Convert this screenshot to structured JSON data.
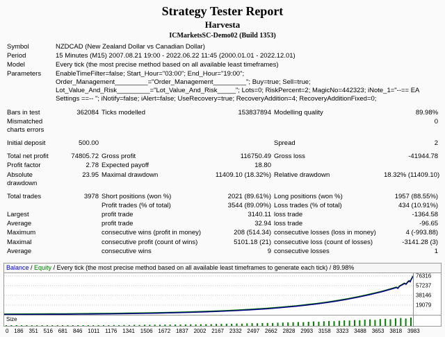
{
  "header": {
    "title": "Strategy Tester Report",
    "ea_name": "Harvesta",
    "server": "ICMarketsSC-Demo02 (Build 1353)"
  },
  "table": {
    "rows": [
      {
        "name": "row-symbol",
        "cells": [
          {
            "t": "Symbol"
          },
          {
            "t": "NZDCAD (New Zealand Dollar vs Canadian Dollar)",
            "span": 5
          }
        ]
      },
      {
        "name": "row-period",
        "cells": [
          {
            "t": "Period"
          },
          {
            "t": "15 Minutes (M15) 2007.08.21 19:00 - 2022.06.22 11:45 (2000.01.01 - 2022.12.01)",
            "span": 5
          }
        ]
      },
      {
        "name": "row-model",
        "cells": [
          {
            "t": "Model"
          },
          {
            "t": "Every tick (the most precise method based on all available least timeframes)",
            "span": 5
          }
        ]
      },
      {
        "name": "row-parameters",
        "cells": [
          {
            "t": "Parameters"
          },
          {
            "t": "EnableTimeFilter=false; Start_Hour=\"03:00\"; End_Hour=\"19:00\"; Order_Management_________=\"Order_Management_________\"; Buy=true; Sell=true; Lot_Value_And_Risk_________=\"Lot_Value_And_Risk_____\"; Lots=0; RiskPercent=2; MagicNo=442323; iNote_1=\"--== EA Settings ==-- \"; iNotify=false; iAlert=false; UseRecovery=true; RecoveryAddition=4; RecoveryAdditionFixed=0;",
            "span": 5
          }
        ]
      },
      {
        "spacer": true
      },
      {
        "name": "row-bars-in-test",
        "cells": [
          {
            "t": "Bars in test"
          },
          {
            "t": "362084",
            "al": "r"
          },
          {
            "t": "Ticks modelled"
          },
          {
            "t": "153837894",
            "al": "r"
          },
          {
            "t": "Modelling quality"
          },
          {
            "t": "89.98%",
            "al": "r"
          }
        ]
      },
      {
        "name": "row-mismatched-charts-errors",
        "cells": [
          {
            "t": "Mismatched charts errors"
          },
          {
            "t": "",
            "span": 4
          },
          {
            "t": "0",
            "al": "r"
          }
        ]
      },
      {
        "spacer": true
      },
      {
        "name": "row-initial-deposit",
        "cells": [
          {
            "t": "Initial deposit"
          },
          {
            "t": "500.00",
            "al": "r"
          },
          {
            "t": ""
          },
          {
            "t": "",
            "al": "r"
          },
          {
            "t": "Spread"
          },
          {
            "t": "2",
            "al": "r"
          }
        ]
      },
      {
        "spacer": true
      },
      {
        "name": "row-total-net-profit",
        "cells": [
          {
            "t": "Total net profit"
          },
          {
            "t": "74805.72",
            "al": "r"
          },
          {
            "t": "Gross profit"
          },
          {
            "t": "116750.49",
            "al": "r"
          },
          {
            "t": "Gross loss"
          },
          {
            "t": "-41944.78",
            "al": "r"
          }
        ]
      },
      {
        "name": "row-profit-factor",
        "cells": [
          {
            "t": "Profit factor"
          },
          {
            "t": "2.78",
            "al": "r"
          },
          {
            "t": "Expected payoff"
          },
          {
            "t": "18.80",
            "al": "r"
          },
          {
            "t": ""
          },
          {
            "t": "",
            "al": "r"
          }
        ]
      },
      {
        "name": "row-drawdown",
        "cells": [
          {
            "t": "Absolute drawdown"
          },
          {
            "t": "23.95",
            "al": "r"
          },
          {
            "t": "Maximal drawdown"
          },
          {
            "t": "11409.10 (18.32%)",
            "al": "r"
          },
          {
            "t": "Relative drawdown"
          },
          {
            "t": "18.32% (11409.10)",
            "al": "r"
          }
        ]
      },
      {
        "spacer": true
      },
      {
        "name": "row-total-trades",
        "cells": [
          {
            "t": "Total trades"
          },
          {
            "t": "3978",
            "al": "r"
          },
          {
            "t": "Short positions (won %)"
          },
          {
            "t": "2021 (89.61%)",
            "al": "r"
          },
          {
            "t": "Long positions (won %)"
          },
          {
            "t": "1957 (88.55%)",
            "al": "r"
          }
        ]
      },
      {
        "name": "row-profit-trades",
        "cells": [
          {
            "t": ""
          },
          {
            "t": "",
            "al": "r"
          },
          {
            "t": "Profit trades (% of total)"
          },
          {
            "t": "3544 (89.09%)",
            "al": "r"
          },
          {
            "t": "Loss trades (% of total)"
          },
          {
            "t": "434 (10.91%)",
            "al": "r"
          }
        ]
      },
      {
        "name": "row-largest",
        "cells": [
          {
            "t": "Largest"
          },
          {
            "t": "",
            "al": "r"
          },
          {
            "t": "profit trade"
          },
          {
            "t": "3140.11",
            "al": "r"
          },
          {
            "t": "loss trade"
          },
          {
            "t": "-1364.58",
            "al": "r"
          }
        ]
      },
      {
        "name": "row-average-trade",
        "cells": [
          {
            "t": "Average"
          },
          {
            "t": "",
            "al": "r"
          },
          {
            "t": "profit trade"
          },
          {
            "t": "32.94",
            "al": "r"
          },
          {
            "t": "loss trade"
          },
          {
            "t": "-96.65",
            "al": "r"
          }
        ]
      },
      {
        "name": "row-maximum-consecutive",
        "cells": [
          {
            "t": "Maximum"
          },
          {
            "t": "",
            "al": "r"
          },
          {
            "t": "consecutive wins (profit in money)"
          },
          {
            "t": "208 (514.34)",
            "al": "r"
          },
          {
            "t": "consecutive losses (loss in money)"
          },
          {
            "t": "4 (-993.88)",
            "al": "r"
          }
        ]
      },
      {
        "name": "row-maximal-consecutive",
        "cells": [
          {
            "t": "Maximal"
          },
          {
            "t": "",
            "al": "r"
          },
          {
            "t": "consecutive profit (count of wins)"
          },
          {
            "t": "5101.18 (21)",
            "al": "r"
          },
          {
            "t": "consecutive loss (count of losses)"
          },
          {
            "t": "-3141.28 (3)",
            "al": "r"
          }
        ]
      },
      {
        "name": "row-average-consecutive",
        "cells": [
          {
            "t": "Average"
          },
          {
            "t": "",
            "al": "r"
          },
          {
            "t": "consecutive wins"
          },
          {
            "t": "9",
            "al": "r"
          },
          {
            "t": "consecutive losses"
          },
          {
            "t": "1",
            "al": "r"
          }
        ]
      }
    ]
  },
  "chart_data": {
    "type": "line",
    "title": "Balance / Equity",
    "legend": {
      "balance": "Balance",
      "equity": "Equity",
      "separator": " / ",
      "description": "Every tick (the most precise method based on all available least timeframes to generate each tick)",
      "quality": "89.98%"
    },
    "size_label": "Size",
    "grid": true,
    "legend_position": "top",
    "ylim": [
      0,
      81500
    ],
    "xlim": [
      0,
      3983
    ],
    "y_ticks": [
      76316,
      57237,
      38146,
      19079
    ],
    "x_ticks": [
      "0",
      "186",
      "351",
      "516",
      "681",
      "846",
      "1011",
      "1176",
      "1341",
      "1506",
      "1672",
      "1837",
      "2002",
      "2167",
      "2332",
      "2497",
      "2662",
      "2828",
      "2993",
      "3158",
      "3323",
      "3488",
      "3653",
      "3818",
      "3983"
    ],
    "colors": {
      "balance": "#00007f",
      "equity": "#008000",
      "bars": "#007f00"
    },
    "equity_overlaps_balance": true,
    "series": [
      {
        "name": "Balance",
        "points": [
          [
            0,
            500
          ],
          [
            150,
            620
          ],
          [
            300,
            760
          ],
          [
            450,
            920
          ],
          [
            600,
            1100
          ],
          [
            750,
            1320
          ],
          [
            900,
            1580
          ],
          [
            1050,
            1900
          ],
          [
            1200,
            2280
          ],
          [
            1350,
            2730
          ],
          [
            1500,
            3280
          ],
          [
            1650,
            3930
          ],
          [
            1800,
            4720
          ],
          [
            1950,
            5660
          ],
          [
            2100,
            6790
          ],
          [
            2250,
            8150
          ],
          [
            2400,
            9780
          ],
          [
            2550,
            11700
          ],
          [
            2700,
            14100
          ],
          [
            2850,
            16900
          ],
          [
            2950,
            19100
          ],
          [
            3050,
            21500
          ],
          [
            3150,
            24200
          ],
          [
            3250,
            27300
          ],
          [
            3350,
            30700
          ],
          [
            3450,
            34600
          ],
          [
            3550,
            39000
          ],
          [
            3620,
            42300
          ],
          [
            3680,
            45300
          ],
          [
            3740,
            48600
          ],
          [
            3790,
            51500
          ],
          [
            3820,
            53400
          ],
          [
            3835,
            51800
          ],
          [
            3850,
            55600
          ],
          [
            3880,
            58900
          ],
          [
            3900,
            61200
          ],
          [
            3915,
            59800
          ],
          [
            3930,
            63700
          ],
          [
            3945,
            66200
          ],
          [
            3955,
            64500
          ],
          [
            3965,
            69000
          ],
          [
            3972,
            71500
          ],
          [
            3978,
            74000
          ],
          [
            3983,
            75306
          ]
        ]
      }
    ],
    "size_bars": {
      "values": [
        0.05,
        0.04,
        0.05,
        0.05,
        0.06,
        0.05,
        0.06,
        0.06,
        0.05,
        0.07,
        0.06,
        0.07,
        0.07,
        0.08,
        0.07,
        0.08,
        0.09,
        0.08,
        0.09,
        0.1,
        0.09,
        0.11,
        0.1,
        0.12,
        0.11,
        0.13,
        0.12,
        0.14,
        0.13,
        0.15,
        0.14,
        0.16,
        0.15,
        0.17,
        0.16,
        0.18,
        0.19,
        0.18,
        0.2,
        0.21,
        0.22,
        0.24,
        0.23,
        0.26,
        0.25,
        0.28,
        0.27,
        0.3,
        0.32,
        0.31,
        0.34,
        0.36,
        0.35,
        0.38,
        0.4,
        0.42,
        0.44,
        0.47,
        0.45,
        0.5,
        0.53,
        0.51,
        0.56,
        0.59,
        0.57,
        0.62,
        0.66,
        0.64,
        0.7,
        0.68,
        0.74,
        0.78,
        0.72,
        0.82,
        0.86,
        0.8,
        0.9,
        0.95,
        0.88,
        1.0
      ]
    }
  }
}
